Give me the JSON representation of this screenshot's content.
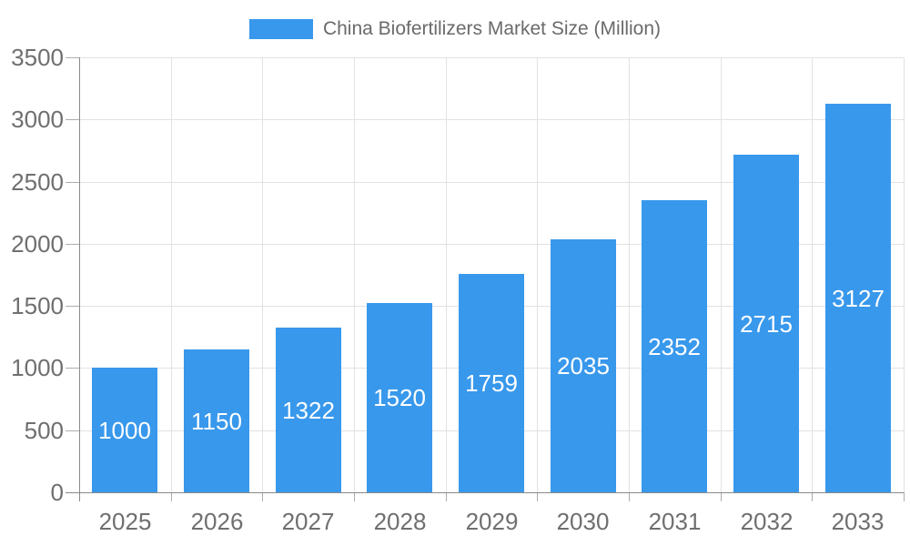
{
  "chart_data": {
    "type": "bar",
    "title": "China Biofertilizers Market Size (Million)",
    "legend": [
      {
        "label": "China Biofertilizers Market Size (Million)",
        "color": "#3898EC"
      }
    ],
    "legend_position": "top",
    "categories": [
      "2025",
      "2026",
      "2027",
      "2028",
      "2029",
      "2030",
      "2031",
      "2032",
      "2033"
    ],
    "series": [
      {
        "name": "China Biofertilizers Market Size (Million)",
        "values": [
          1000,
          1150,
          1322,
          1520,
          1759,
          2035,
          2352,
          2715,
          3127
        ]
      }
    ],
    "xlabel": "",
    "ylabel": "",
    "ylim": [
      0,
      3500
    ],
    "y_ticks": [
      0,
      500,
      1000,
      1500,
      2000,
      2500,
      3000,
      3500
    ],
    "grid": true,
    "value_labels": "inside-center",
    "colors": {
      "bar": "#3898EC",
      "value_label": "#FFFFFF",
      "axis_text": "#6F6F6F",
      "title_text": "#6A6A6A",
      "gridline": "#E2E2E2",
      "tick": "#ADADAD",
      "axis_line": "#8A8A8A",
      "background": "#FFFFFF"
    }
  }
}
